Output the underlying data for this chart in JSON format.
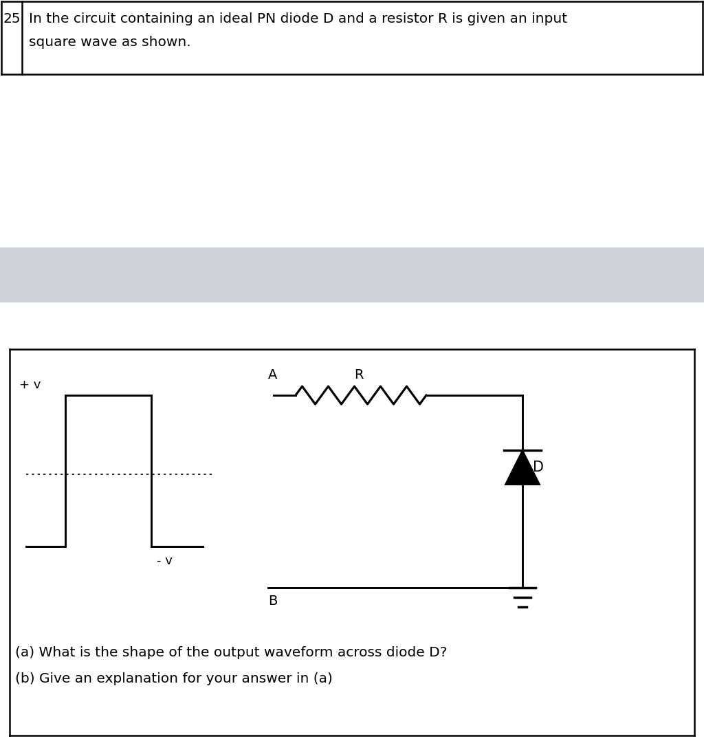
{
  "question_a": "(a) What is the shape of the output waveform across diode D?",
  "question_b": "(b) Give an explanation for your answer in (a)",
  "bg_color": "#ffffff",
  "gray_band_color": "#cdd3d8",
  "text_color": "#000000",
  "border_color": "#000000",
  "font_size_main": 14.5,
  "font_size_labels": 13,
  "q_number": "25",
  "q_line1": "In the circuit containing an ideal PN diode D and a resistor R is given an input",
  "q_line2": "square wave as shown.",
  "label_pv": "+ v",
  "label_mv": "- v",
  "label_A": "A",
  "label_R": "R",
  "label_B": "B",
  "label_D": "D"
}
